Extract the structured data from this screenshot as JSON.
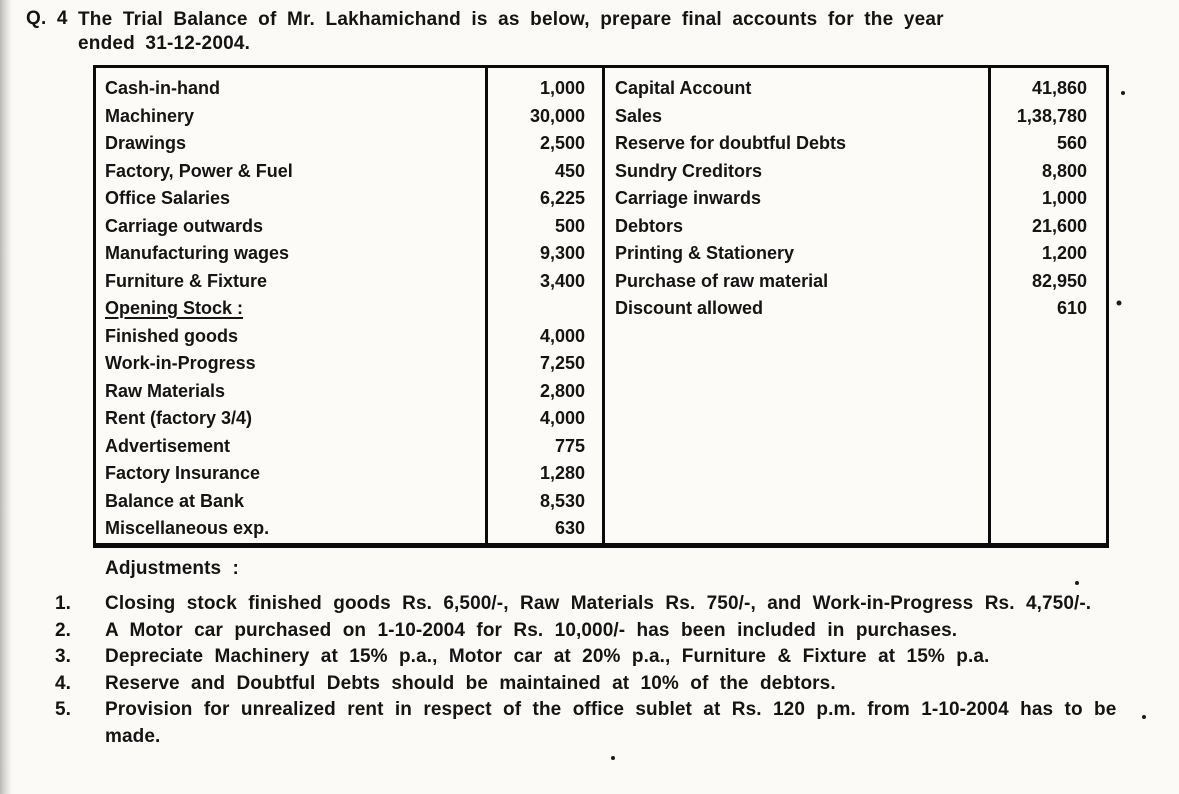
{
  "page": {
    "question_no": "Q. 4",
    "title_line1": "The Trial Balance of Mr. Lakhamichand is as below, prepare final accounts for the year",
    "title_line2": "ended 31-12-2004."
  },
  "trial_balance": {
    "debit": [
      {
        "label": "Cash-in-hand",
        "amount": "1,000"
      },
      {
        "label": "Machinery",
        "amount": "30,000"
      },
      {
        "label": "Drawings",
        "amount": "2,500"
      },
      {
        "label": "Factory, Power & Fuel",
        "amount": "450"
      },
      {
        "label": "Office Salaries",
        "amount": "6,225"
      },
      {
        "label": "Carriage outwards",
        "amount": "500"
      },
      {
        "label": "Manufacturing wages",
        "amount": "9,300"
      },
      {
        "label": "Furniture & Fixture",
        "amount": "3,400"
      },
      {
        "label": "Opening Stock :",
        "amount": ""
      },
      {
        "label": "Finished goods",
        "amount": "4,000"
      },
      {
        "label": "Work-in-Progress",
        "amount": "7,250"
      },
      {
        "label": "Raw Materials",
        "amount": "2,800"
      },
      {
        "label": "Rent (factory 3/4)",
        "amount": "4,000"
      },
      {
        "label": "Advertisement",
        "amount": "775"
      },
      {
        "label": "Factory Insurance",
        "amount": "1,280"
      },
      {
        "label": "Balance at Bank",
        "amount": "8,530"
      },
      {
        "label": "Miscellaneous exp.",
        "amount": "630"
      }
    ],
    "credit": [
      {
        "label": "Capital Account",
        "amount": "41,860"
      },
      {
        "label": "Sales",
        "amount": "1,38,780"
      },
      {
        "label": "Reserve for doubtful Debts",
        "amount": "560"
      },
      {
        "label": "Sundry Creditors",
        "amount": "8,800"
      },
      {
        "label": "Carriage inwards",
        "amount": "1,000"
      },
      {
        "label": "Debtors",
        "amount": "21,600"
      },
      {
        "label": "Printing & Stationery",
        "amount": "1,200"
      },
      {
        "label": "Purchase of raw material",
        "amount": "82,950"
      },
      {
        "label": "Discount allowed",
        "amount": "610"
      }
    ]
  },
  "adjustments": {
    "heading": "Adjustments :",
    "items": [
      {
        "no": "1.",
        "text": "Closing stock finished goods Rs. 6,500/-, Raw Materials Rs. 750/-, and Work-in-Progress Rs. 4,750/-."
      },
      {
        "no": "2.",
        "text": "A Motor car purchased on 1-10-2004 for Rs. 10,000/- has been included in purchases."
      },
      {
        "no": "3.",
        "text": "Depreciate Machinery at 15% p.a., Motor car at 20% p.a., Furniture & Fixture at 15% p.a."
      },
      {
        "no": "4.",
        "text": "Reserve and Doubtful Debts should be maintained at 10% of the debtors."
      },
      {
        "no": "5.",
        "text": "Provision for unrealized rent in respect of the office sublet at Rs. 120 p.m. from 1-10-2004 has to be made."
      }
    ]
  }
}
